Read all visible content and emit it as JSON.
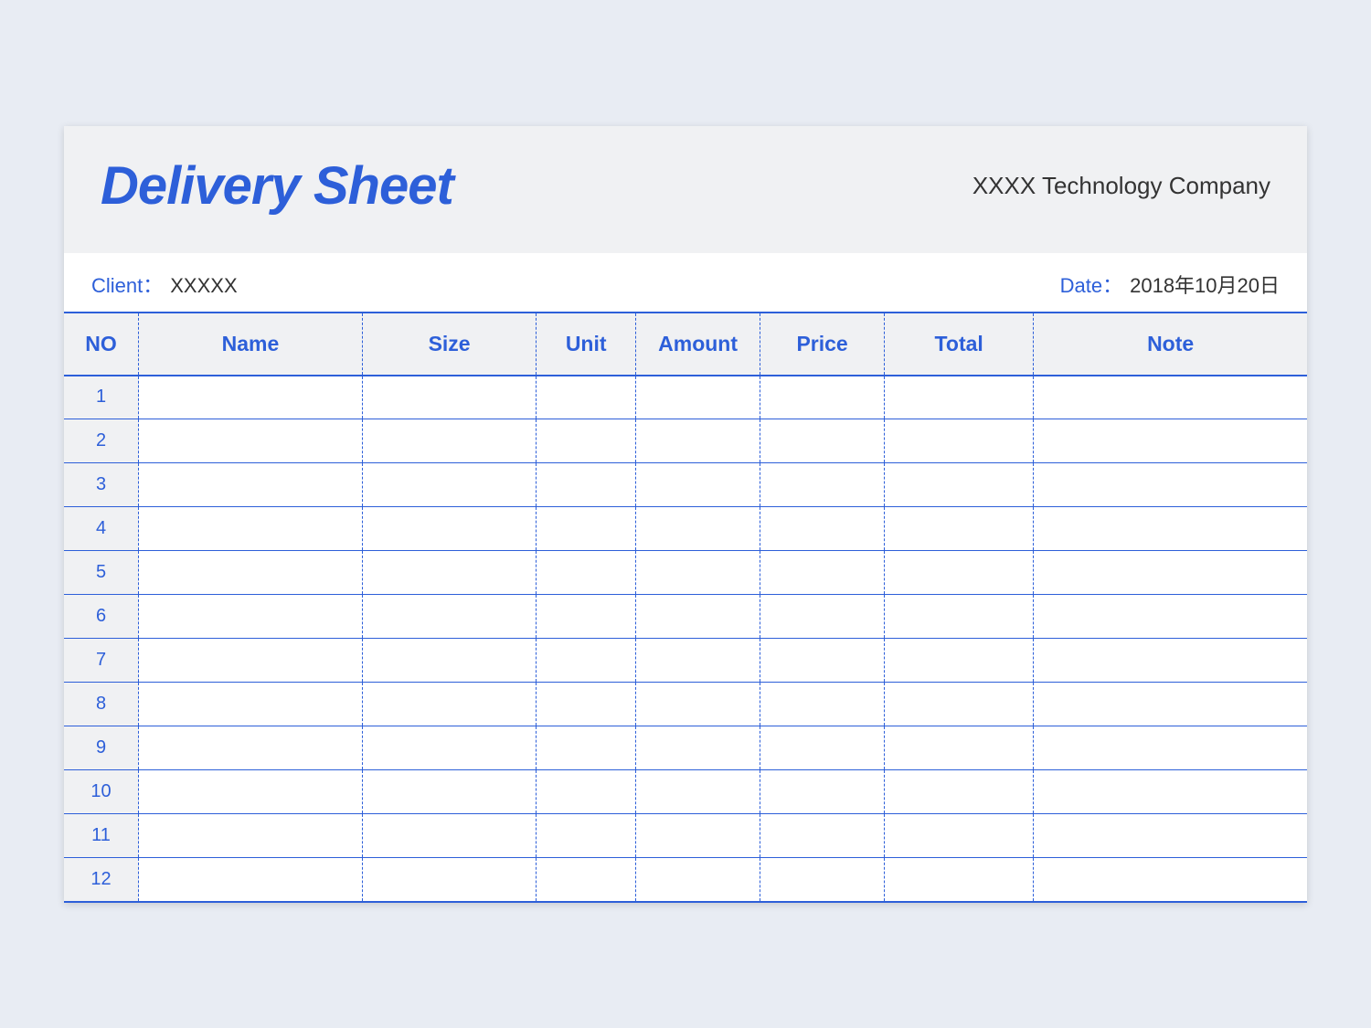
{
  "header": {
    "title": "Delivery Sheet",
    "company": "XXXX Technology Company"
  },
  "info": {
    "client_label": "Client：",
    "client_value": "XXXXX",
    "date_label": "Date：",
    "date_value": "2018年10月20日"
  },
  "table": {
    "columns": [
      "NO",
      "Name",
      "Size",
      "Unit",
      "Amount",
      "Price",
      "Total",
      "Note"
    ],
    "column_widths_pct": [
      6,
      18,
      14,
      8,
      10,
      10,
      12,
      22
    ],
    "rows": [
      {
        "no": "1",
        "name": "",
        "size": "",
        "unit": "",
        "amount": "",
        "price": "",
        "total": "",
        "note": ""
      },
      {
        "no": "2",
        "name": "",
        "size": "",
        "unit": "",
        "amount": "",
        "price": "",
        "total": "",
        "note": ""
      },
      {
        "no": "3",
        "name": "",
        "size": "",
        "unit": "",
        "amount": "",
        "price": "",
        "total": "",
        "note": ""
      },
      {
        "no": "4",
        "name": "",
        "size": "",
        "unit": "",
        "amount": "",
        "price": "",
        "total": "",
        "note": ""
      },
      {
        "no": "5",
        "name": "",
        "size": "",
        "unit": "",
        "amount": "",
        "price": "",
        "total": "",
        "note": ""
      },
      {
        "no": "6",
        "name": "",
        "size": "",
        "unit": "",
        "amount": "",
        "price": "",
        "total": "",
        "note": ""
      },
      {
        "no": "7",
        "name": "",
        "size": "",
        "unit": "",
        "amount": "",
        "price": "",
        "total": "",
        "note": ""
      },
      {
        "no": "8",
        "name": "",
        "size": "",
        "unit": "",
        "amount": "",
        "price": "",
        "total": "",
        "note": ""
      },
      {
        "no": "9",
        "name": "",
        "size": "",
        "unit": "",
        "amount": "",
        "price": "",
        "total": "",
        "note": ""
      },
      {
        "no": "10",
        "name": "",
        "size": "",
        "unit": "",
        "amount": "",
        "price": "",
        "total": "",
        "note": ""
      },
      {
        "no": "11",
        "name": "",
        "size": "",
        "unit": "",
        "amount": "",
        "price": "",
        "total": "",
        "note": ""
      },
      {
        "no": "12",
        "name": "",
        "size": "",
        "unit": "",
        "amount": "",
        "price": "",
        "total": "",
        "note": ""
      }
    ]
  },
  "colors": {
    "primary_blue": "#2d5fd9",
    "light_gray_bg": "#f0f1f3",
    "page_bg": "#e8ecf3",
    "text_dark": "#333333",
    "white": "#ffffff"
  },
  "typography": {
    "title_fontsize": 58,
    "company_fontsize": 26,
    "info_fontsize": 22,
    "header_fontsize": 23,
    "cell_fontsize": 20
  }
}
